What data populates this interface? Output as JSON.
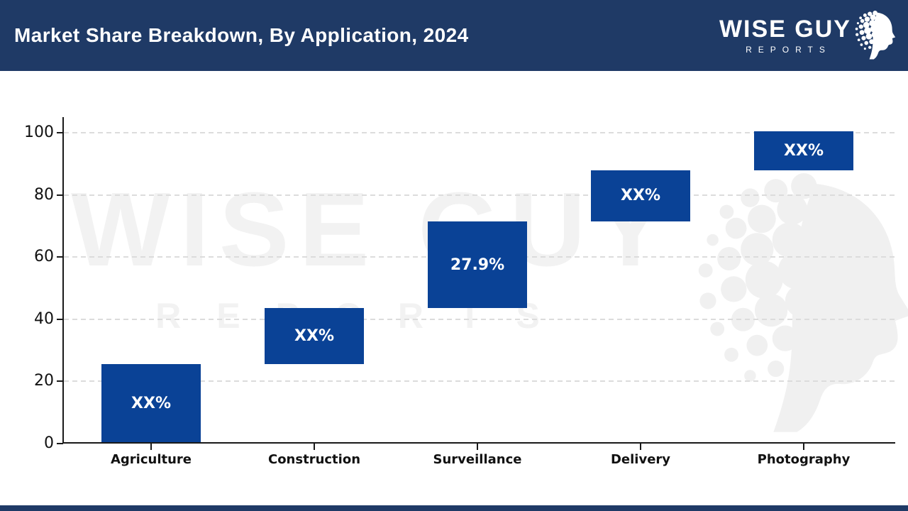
{
  "header": {
    "title": "Market Share Breakdown, By Application, 2024",
    "bg_color": "#1f3a66",
    "logo": {
      "line1": "WISE GUY",
      "line2": "REPORTS"
    }
  },
  "watermark": {
    "line1": "WISE GUY",
    "line2": "REPORTS"
  },
  "chart_data": {
    "type": "bar",
    "variant": "waterfall",
    "title": "Market Share Breakdown, By Application, 2024",
    "xlabel": "",
    "ylabel": "",
    "categories": [
      "Agriculture",
      "Construction",
      "Surveillance",
      "Delivery",
      "Photography"
    ],
    "segments": [
      {
        "category": "Agriculture",
        "start": 0,
        "end": 25,
        "label": "XX%"
      },
      {
        "category": "Construction",
        "start": 25,
        "end": 43.1,
        "label": "XX%"
      },
      {
        "category": "Surveillance",
        "start": 43.1,
        "end": 71,
        "label": "27.9%"
      },
      {
        "category": "Delivery",
        "start": 71,
        "end": 87.5,
        "label": "XX%"
      },
      {
        "category": "Photography",
        "start": 87.5,
        "end": 100,
        "label": "XX%"
      }
    ],
    "yticks": [
      0,
      20,
      40,
      60,
      80,
      100
    ],
    "ylim": [
      0,
      105
    ],
    "grid": "horizontal-dashed",
    "legend": "none",
    "bar_color": "#0a4296",
    "bar_label_color": "#ffffff",
    "axis_color": "#1a1a1a",
    "gridline_color": "#dcdcdc",
    "header_color": "#1f3a66"
  },
  "footer": {
    "bg_color": "#1f3a66"
  }
}
